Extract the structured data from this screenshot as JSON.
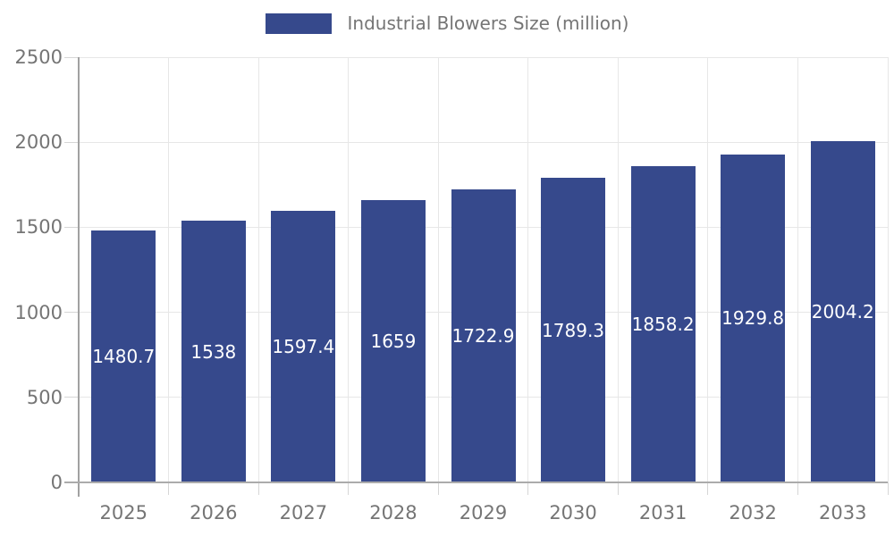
{
  "legend": {
    "label": "Industrial Blowers Size (million)"
  },
  "colors": {
    "bar": "#36498c",
    "grid": "#e7e7e7",
    "axis_line": "#a1a1a1",
    "baseline": "#ababab",
    "tick": "#d6d6d6",
    "axis_text": "#757575",
    "value_label": "#ffffff",
    "background": "#ffffff"
  },
  "chart_data": {
    "type": "bar",
    "title": "Industrial Blowers Size (million)",
    "categories": [
      "2025",
      "2026",
      "2027",
      "2028",
      "2029",
      "2030",
      "2031",
      "2032",
      "2033"
    ],
    "values": [
      1480.7,
      1538,
      1597.4,
      1659,
      1722.9,
      1789.3,
      1858.2,
      1929.8,
      2004.2
    ],
    "xlabel": "",
    "ylabel": "",
    "ylim": [
      0,
      2500
    ],
    "yticks": [
      0,
      500,
      1000,
      1500,
      2000,
      2500
    ],
    "grid": true,
    "legend_position": "top-center",
    "value_labels": "inside-middle-white"
  }
}
